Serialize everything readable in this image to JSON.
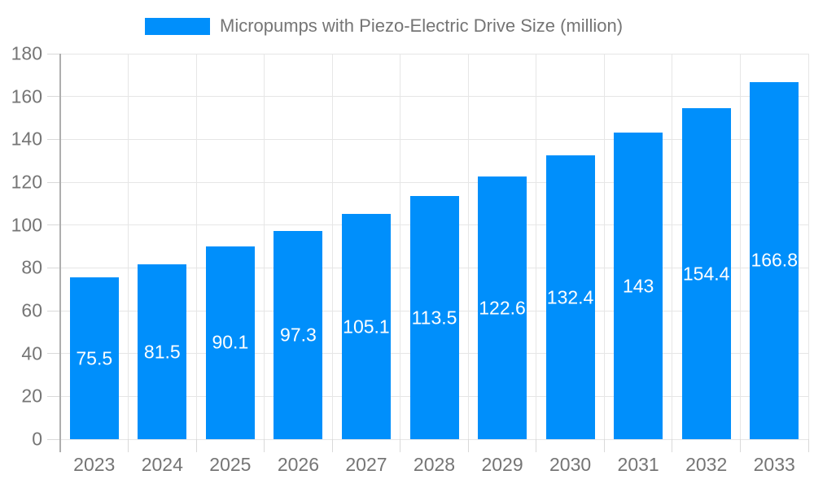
{
  "chart_data": {
    "type": "bar",
    "title": "Micropumps with Piezo-Electric Drive Size (million)",
    "categories": [
      "2023",
      "2024",
      "2025",
      "2026",
      "2027",
      "2028",
      "2029",
      "2030",
      "2031",
      "2032",
      "2033"
    ],
    "values": [
      75.5,
      81.5,
      90.1,
      97.3,
      105.1,
      113.5,
      122.6,
      132.4,
      143,
      154.4,
      166.8
    ],
    "bar_labels": [
      "75.5",
      "81.5",
      "90.1",
      "97.3",
      "105.1",
      "113.5",
      "122.6",
      "132.4",
      "143",
      "154.4",
      "166.8"
    ],
    "xlabel": "",
    "ylabel": "",
    "ylim": [
      0,
      180
    ],
    "ytick_step": 20,
    "ytick_labels": [
      "0",
      "20",
      "40",
      "60",
      "80",
      "100",
      "120",
      "140",
      "160",
      "180"
    ],
    "legend_position": "top",
    "grid": "horizontal-and-vertical",
    "data_label_position": "center-of-bar",
    "colors": {
      "bar": "#008FFB",
      "bar_label_text": "#ffffff",
      "axis_text": "#757575",
      "legend_text": "#757575",
      "grid_line": "#e6e6e6",
      "tick_line": "#d9d9d9",
      "axis_line": "#aeaeae",
      "background": "#ffffff"
    }
  }
}
